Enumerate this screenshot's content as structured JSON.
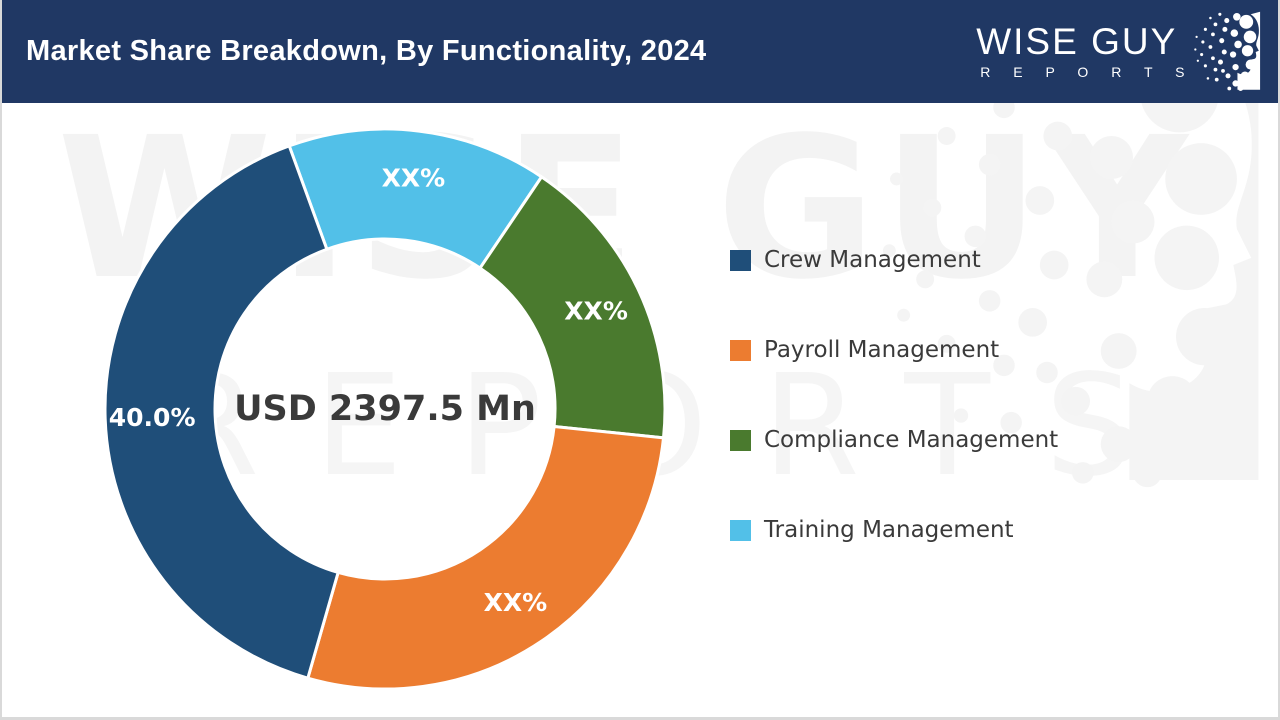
{
  "header": {
    "title": "Market Share Breakdown, By Functionality, 2024",
    "bg_color": "#203864",
    "brand": {
      "name": "WISE GUY",
      "tagline": "R E P O R T S"
    }
  },
  "watermark": {
    "line1": "WISE GUY",
    "line2": "REPORTS"
  },
  "chart_data": {
    "type": "donut",
    "title": "Market Share Breakdown, By Functionality, 2024",
    "center_label": "USD 2397.5 Mn",
    "start_angle_deg": 340,
    "outer_radius_px": 280,
    "inner_radius_px": 170,
    "legend_position": "right",
    "segments": [
      {
        "name": "Training Management",
        "value": 15.0,
        "display_label": "XX%",
        "color": "#52c0e8"
      },
      {
        "name": "Compliance Management",
        "value": 17.2,
        "display_label": "XX%",
        "color": "#4a7a2e"
      },
      {
        "name": "Payroll Management",
        "value": 27.8,
        "display_label": "XX%",
        "color": "#ec7c30"
      },
      {
        "name": "Crew Management",
        "value": 40.0,
        "display_label": "40.0%",
        "color": "#1f4e79"
      }
    ],
    "legend_order": [
      "Crew Management",
      "Payroll Management",
      "Compliance Management",
      "Training Management"
    ]
  }
}
